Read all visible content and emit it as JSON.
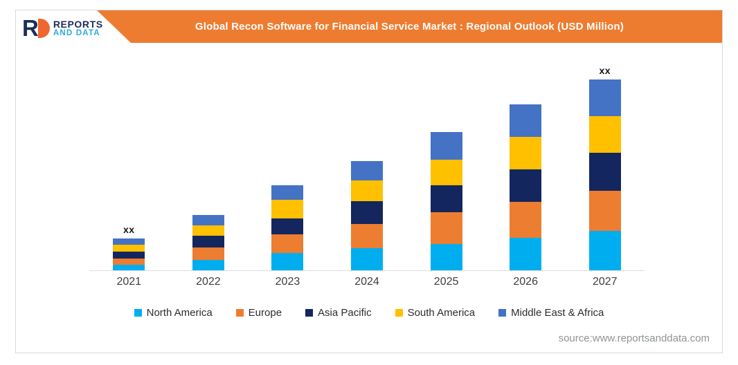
{
  "header": {
    "logo": {
      "icon": "RD-logo",
      "line1": "REPORTS",
      "line2": "AND DATA"
    },
    "banner_title": "Global Recon Software for Financial Service Market : Regional Outlook (USD Million)",
    "banner_color": "#ee7c30",
    "logo_navy": "#1b2d5b",
    "logo_cyan": "#29abe2"
  },
  "chart_data": {
    "type": "bar",
    "stacked": true,
    "title": "Global Recon Software for Financial Service Market : Regional Outlook (USD Million)",
    "unit": "USD Million",
    "categories": [
      "2021",
      "2022",
      "2023",
      "2024",
      "2025",
      "2026",
      "2027"
    ],
    "series": [
      {
        "name": "North America",
        "color": "#00aeef",
        "values": [
          8,
          15,
          25,
          32,
          38,
          47,
          57
        ]
      },
      {
        "name": "Europe",
        "color": "#ed7d31",
        "values": [
          9,
          18,
          27,
          35,
          46,
          52,
          58
        ]
      },
      {
        "name": "Asia Pacific",
        "color": "#14265e",
        "values": [
          10,
          17,
          23,
          33,
          39,
          47,
          55
        ]
      },
      {
        "name": "South America",
        "color": "#ffc000",
        "values": [
          10,
          15,
          27,
          30,
          37,
          47,
          53
        ]
      },
      {
        "name": "Middle East & Africa",
        "color": "#4472c4",
        "values": [
          9,
          15,
          21,
          28,
          40,
          47,
          53
        ]
      }
    ],
    "bar_labels": [
      "xx",
      "",
      "",
      "",
      "",
      "",
      "xx"
    ],
    "xlabel": "",
    "ylabel": "",
    "y_axis_visible": false,
    "grid": false,
    "legend_position": "bottom",
    "axis_line_color": "#dcdcdc"
  },
  "footer": {
    "source": "source:www.reportsanddata.com"
  }
}
